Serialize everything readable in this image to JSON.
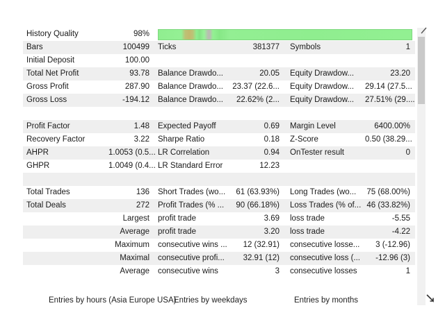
{
  "colors": {
    "row-alt": "#efefef",
    "bar-green": "#90ee90",
    "bar-tan": "#bdc276",
    "bar-gray": "#b9bdb2",
    "scroll-track": "#f1f1f1",
    "scroll-thumb": "#c9c9c9"
  },
  "table": {
    "rows": [
      {
        "type": "bar",
        "cells": [
          "History Quality",
          "98%"
        ]
      },
      {
        "type": "data",
        "cells": [
          "Bars",
          "100499",
          "Ticks",
          "381377",
          "Symbols",
          "1"
        ]
      },
      {
        "type": "data",
        "cells": [
          "Initial Deposit",
          "100.00",
          "",
          "",
          "",
          ""
        ]
      },
      {
        "type": "data",
        "cells": [
          "Total Net Profit",
          "93.78",
          "Balance Drawdo...",
          "20.05",
          "Equity Drawdow...",
          "23.20"
        ]
      },
      {
        "type": "data",
        "cells": [
          "Gross Profit",
          "287.90",
          "Balance Drawdo...",
          "23.37 (22.6...",
          "Equity Drawdow...",
          "29.14 (27.5..."
        ]
      },
      {
        "type": "data",
        "cells": [
          "Gross Loss",
          "-194.12",
          "Balance Drawdo...",
          "22.62% (2...",
          "Equity Drawdow...",
          "27.51% (29...."
        ]
      },
      {
        "type": "blank",
        "cells": [
          "",
          "",
          "",
          "",
          "",
          ""
        ]
      },
      {
        "type": "data",
        "cells": [
          "Profit Factor",
          "1.48",
          "Expected Payoff",
          "0.69",
          "Margin Level",
          "6400.00%"
        ]
      },
      {
        "type": "data",
        "cells": [
          "Recovery Factor",
          "3.22",
          "Sharpe Ratio",
          "0.18",
          "Z-Score",
          "0.50 (38.29..."
        ]
      },
      {
        "type": "data",
        "cells": [
          "AHPR",
          "1.0053 (0.5...",
          "LR Correlation",
          "0.94",
          "OnTester result",
          "0"
        ]
      },
      {
        "type": "data",
        "cells": [
          "GHPR",
          "1.0049 (0.4...",
          "LR Standard Error",
          "12.23",
          "",
          ""
        ]
      },
      {
        "type": "blank",
        "cells": [
          "",
          "",
          "",
          "",
          "",
          ""
        ]
      },
      {
        "type": "data",
        "cells": [
          "Total Trades",
          "136",
          "Short Trades (wo...",
          "61 (63.93%)",
          "Long Trades (wo...",
          "75 (68.00%)"
        ]
      },
      {
        "type": "data",
        "cells": [
          "Total Deals",
          "272",
          "Profit Trades (% ...",
          "90 (66.18%)",
          "Loss Trades (% of...",
          "46 (33.82%)"
        ]
      },
      {
        "type": "data",
        "cells": [
          "",
          "Largest",
          "profit trade",
          "3.69",
          "loss trade",
          "-5.55"
        ]
      },
      {
        "type": "data",
        "cells": [
          "",
          "Average",
          "profit trade",
          "3.20",
          "loss trade",
          "-4.22"
        ]
      },
      {
        "type": "data",
        "cells": [
          "",
          "Maximum",
          "consecutive wins ...",
          "12 (32.91)",
          "consecutive losse...",
          "3 (-12.96)"
        ]
      },
      {
        "type": "data",
        "cells": [
          "",
          "Maximal",
          "consecutive profi...",
          "32.91 (12)",
          "consecutive loss (...",
          "-12.96 (3)"
        ]
      },
      {
        "type": "data",
        "cells": [
          "",
          "Average",
          "consecutive wins",
          "3",
          "consecutive losses",
          "1"
        ]
      }
    ]
  },
  "history_quality_bar": {
    "value_pct": 98,
    "main_color": "#90ee90"
  },
  "footer": {
    "sections": [
      {
        "label": "Entries by hours (Asia Europe USA)"
      },
      {
        "label": "Entries by weekdays"
      },
      {
        "label": "Entries by months"
      }
    ]
  }
}
